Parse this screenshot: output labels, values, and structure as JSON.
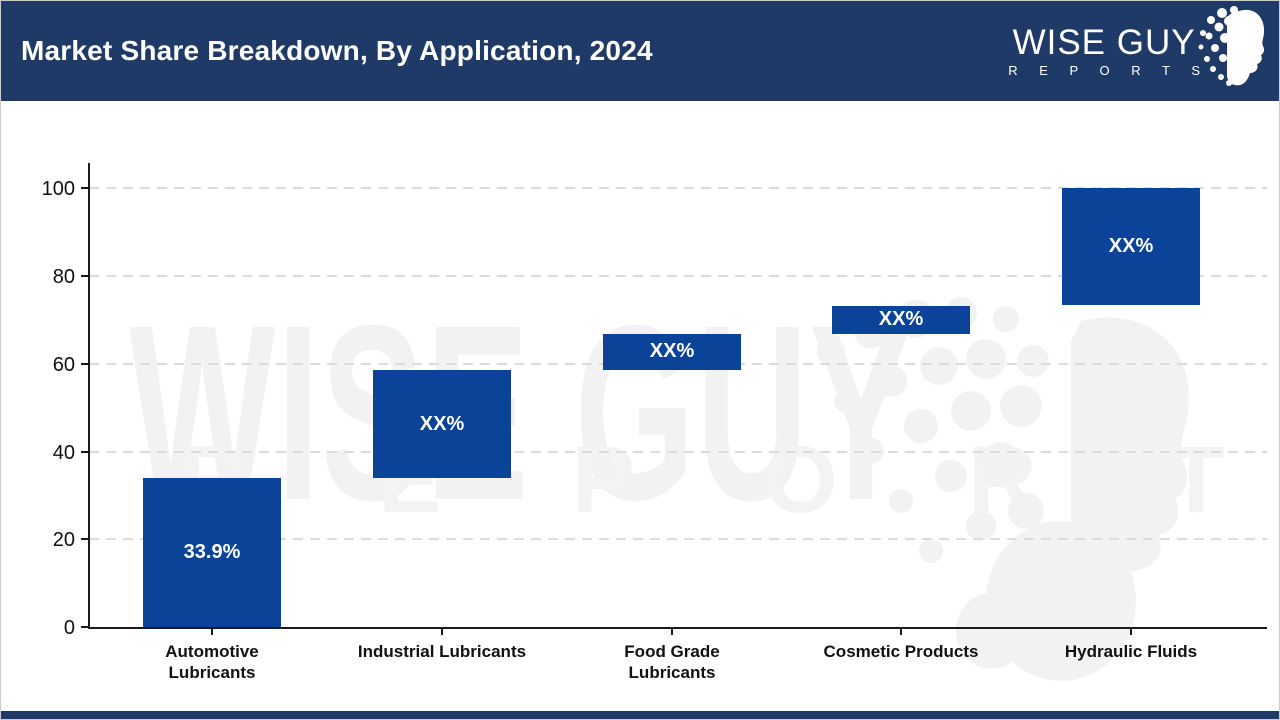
{
  "header": {
    "title": "Market Share Breakdown, By Application, 2024",
    "logo_line1": "WISE GUY",
    "logo_line2": "R E P O R T S"
  },
  "watermark": {
    "line1": "WISE GUY",
    "line2": "R E P O R T S"
  },
  "chart_data": {
    "type": "bar",
    "subtype": "waterfall",
    "title": "Market Share Breakdown, By Application, 2024",
    "categories": [
      "Automotive Lubricants",
      "Industrial Lubricants",
      "Food Grade Lubricants",
      "Cosmetic Products",
      "Hydraulic Fluids"
    ],
    "series": [
      {
        "name": "Market share (%)",
        "segments": [
          {
            "category": "Automotive Lubricants",
            "start": 0,
            "end": 33.9,
            "label": "33.9%"
          },
          {
            "category": "Industrial Lubricants",
            "start": 33.9,
            "end": 58.6,
            "label": "XX%"
          },
          {
            "category": "Food Grade Lubricants",
            "start": 58.6,
            "end": 66.9,
            "label": "XX%"
          },
          {
            "category": "Cosmetic Products",
            "start": 66.9,
            "end": 73.3,
            "label": "XX%"
          },
          {
            "category": "Hydraulic Fluids",
            "start": 73.3,
            "end": 100,
            "label": "XX%"
          }
        ]
      }
    ],
    "ylim": [
      0,
      105
    ],
    "yticks": [
      0,
      20,
      40,
      60,
      80,
      100
    ],
    "xlabel": "",
    "ylabel": "",
    "grid": "horizontal-dashed",
    "legend": "none",
    "colors": {
      "header_bg": "#1f3a66",
      "footer_bg": "#1f3a66",
      "bar": "#0a4397",
      "bar_label": "#ffffff",
      "axis": "#1a1a1a",
      "grid": "#dcdcdc",
      "watermark": "#f2f2f2"
    }
  }
}
